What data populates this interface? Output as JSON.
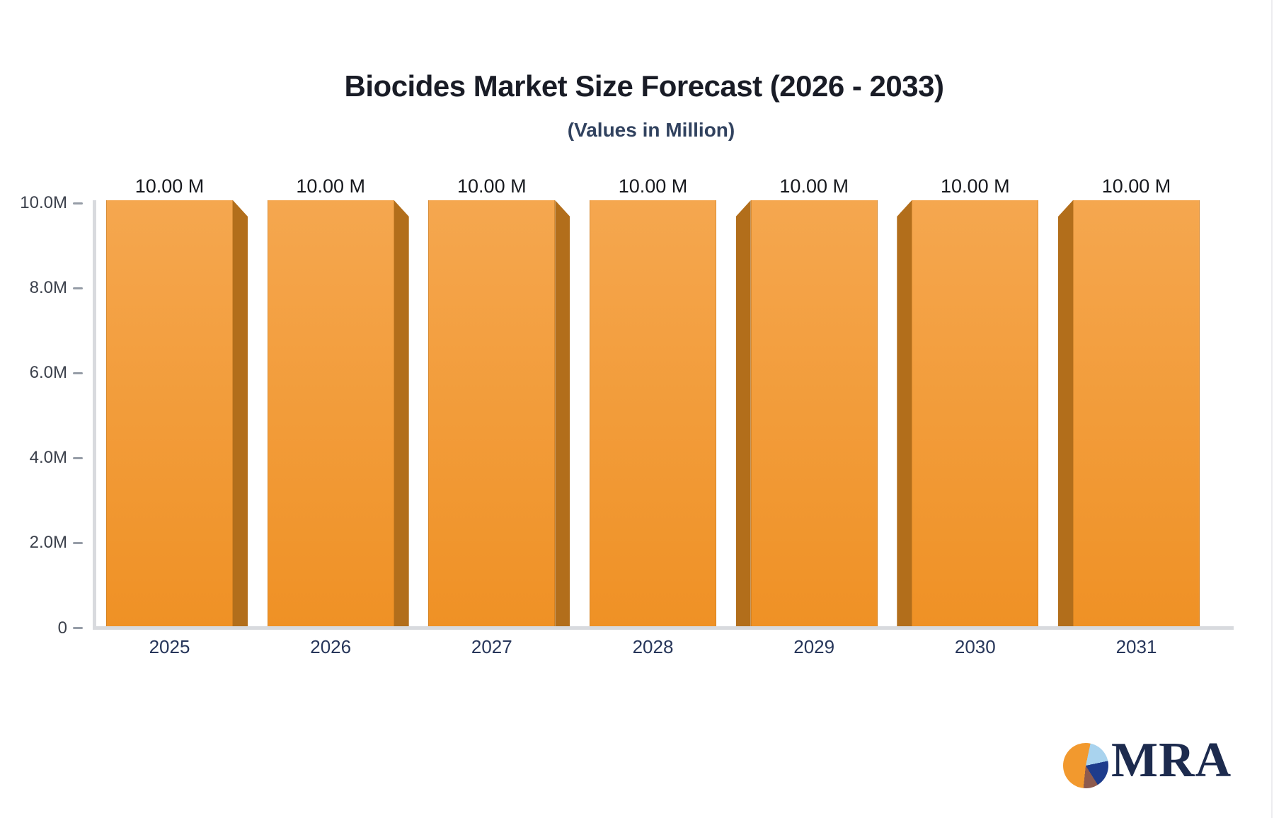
{
  "chart_data": {
    "type": "bar",
    "title": "Biocides Market Size Forecast (2026 - 2033)",
    "subtitle": "(Values in Million)",
    "categories": [
      "2025",
      "2026",
      "2027",
      "2028",
      "2029",
      "2030",
      "2031"
    ],
    "values_millions": [
      10,
      10,
      10,
      10,
      10,
      10,
      10
    ],
    "bar_value_labels": [
      "10.00 M",
      "10.00 M",
      "10.00 M",
      "10.00 M",
      "10.00 M",
      "10.00 M",
      "10.00 M"
    ],
    "y_axis": {
      "tick_labels": [
        "10.0M",
        "8.0M",
        "6.0M",
        "4.0M",
        "2.0M",
        "0"
      ],
      "min_millions": 0,
      "max_millions": 10
    },
    "grid": false,
    "legend": false,
    "colors": {
      "bar_top": "#f5a74f",
      "bar_bottom": "#ef9125",
      "bar_side": "#b26e1b",
      "axis_line": "#d8dade",
      "tick_mark": "#969da7",
      "title_text": "#191c26",
      "subtitle_text": "#31425f",
      "value_label_text": "#17191e",
      "x_label_text": "#27365a",
      "y_label_text": "#3c414c"
    }
  },
  "logo": {
    "text": "MRA",
    "text_color": "#1d2b4e",
    "pie_colors": {
      "orange": "#f2992e",
      "light_blue": "#a9d3ee",
      "navy": "#1e3c8c",
      "brown": "#8e5b4e"
    }
  }
}
